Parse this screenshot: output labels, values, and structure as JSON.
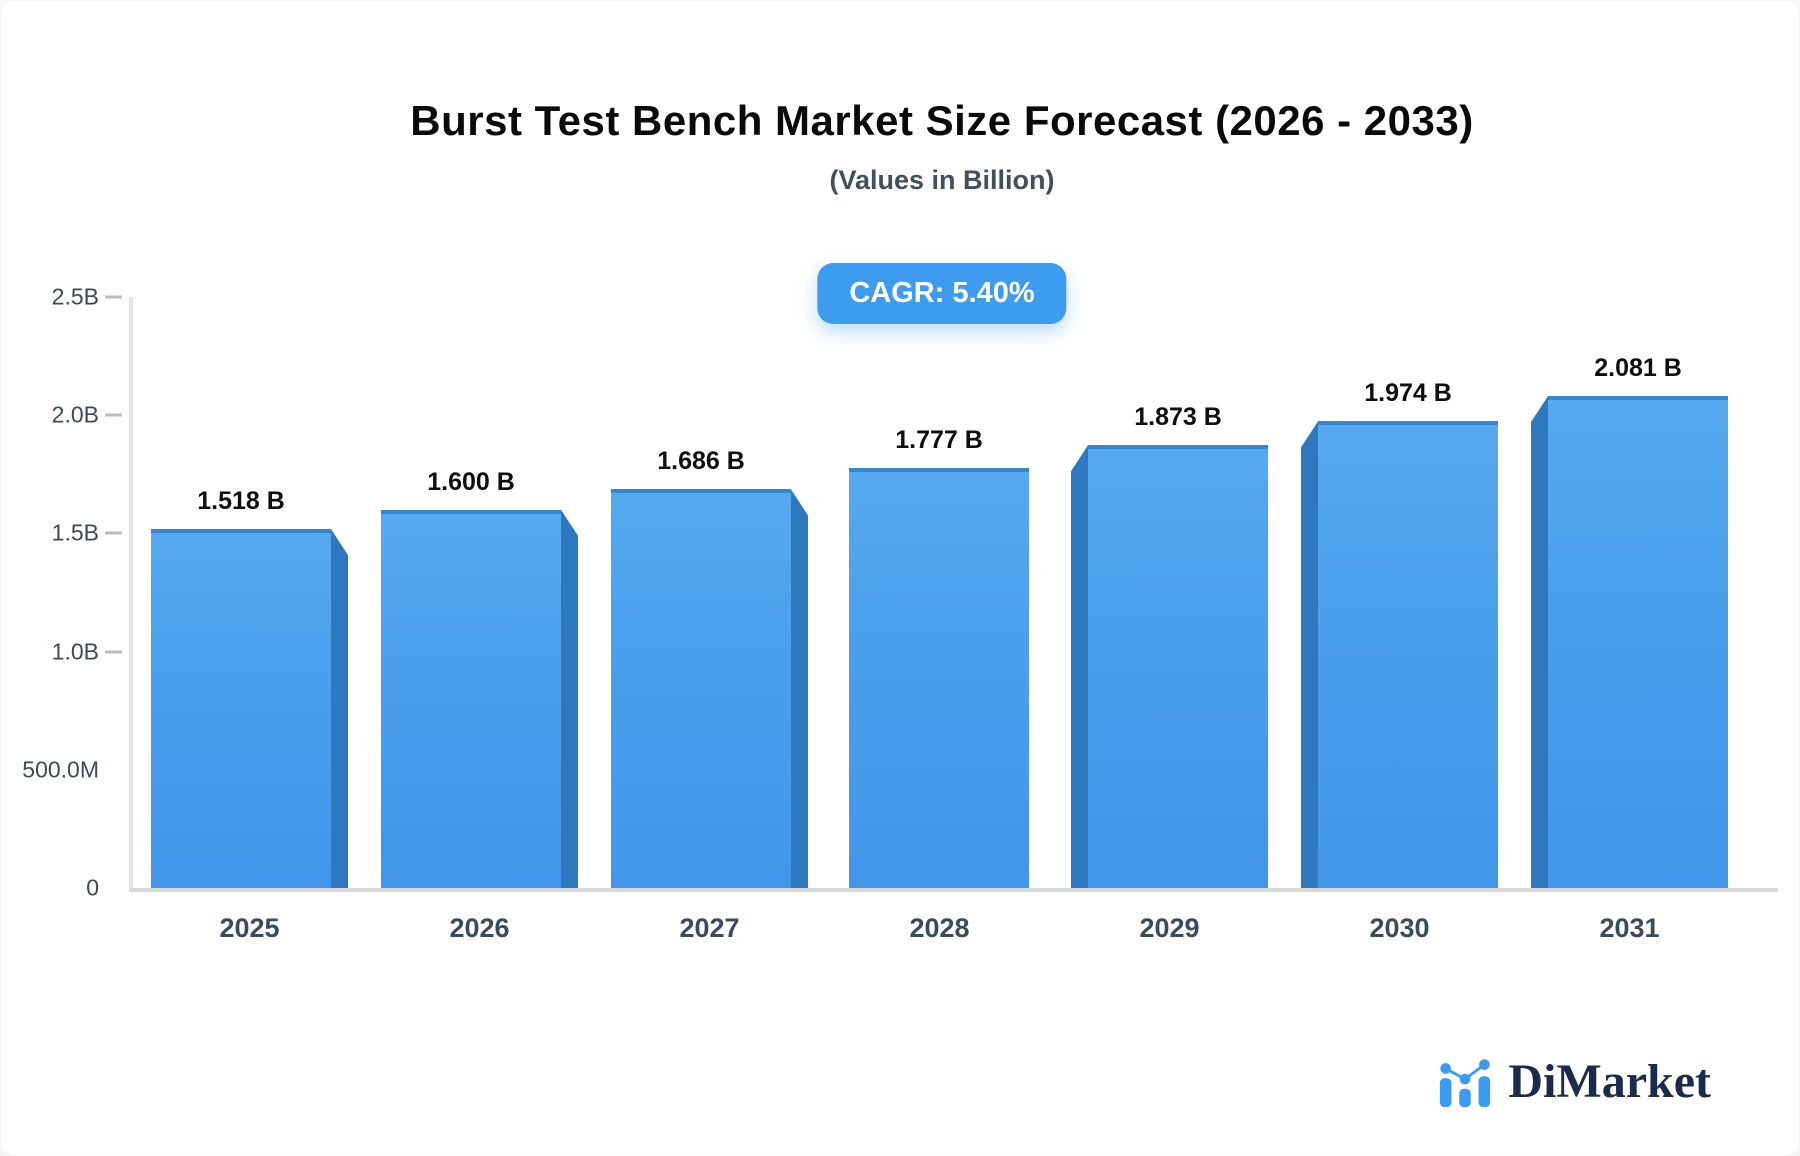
{
  "chart_data": {
    "type": "bar",
    "title": "Burst Test Bench Market Size Forecast (2026 - 2033)",
    "subtitle": "(Values in Billion)",
    "badge": "CAGR: 5.40%",
    "categories": [
      "2025",
      "2026",
      "2027",
      "2028",
      "2029",
      "2030",
      "2031"
    ],
    "values": [
      1.518,
      1.6,
      1.686,
      1.777,
      1.873,
      1.974,
      2.081
    ],
    "value_labels": [
      "1.518 B",
      "1.600 B",
      "1.686 B",
      "1.777 B",
      "1.873 B",
      "1.974 B",
      "2.081 B"
    ],
    "y_ticks": [
      {
        "label": "2.5B",
        "value": 2.5,
        "dash": true
      },
      {
        "label": "2.0B",
        "value": 2.0,
        "dash": true
      },
      {
        "label": "1.5B",
        "value": 1.5,
        "dash": true
      },
      {
        "label": "1.0B",
        "value": 1.0,
        "dash": true
      },
      {
        "label": "500.0M",
        "value": 0.5,
        "dash": false
      },
      {
        "label": "0",
        "value": 0.0,
        "dash": false
      }
    ],
    "ylim": [
      0,
      2.5
    ],
    "grid": false,
    "legend": "none",
    "colors": {
      "bar_face": "#459ceaff",
      "bar_face_gradient_top": "#56a9f0",
      "bar_face_gradient_bottom": "#4196e9",
      "bar_top_border": "#3787cf",
      "bar_side_3d": "#2e79be",
      "badge_background": "#3e9cef",
      "badge_text": "#ffffff",
      "axis_line": "#d7dadd",
      "y_label_text": "#3e4956",
      "x_label_text": "#3a4b61",
      "value_label_text": "#0f0f10"
    }
  },
  "branding": {
    "logo_text": "DiMarket",
    "logo_icon": "bar-chart-logo-icon",
    "logo_color": "#1b2b4b",
    "logo_accent": "#3d9bef"
  }
}
